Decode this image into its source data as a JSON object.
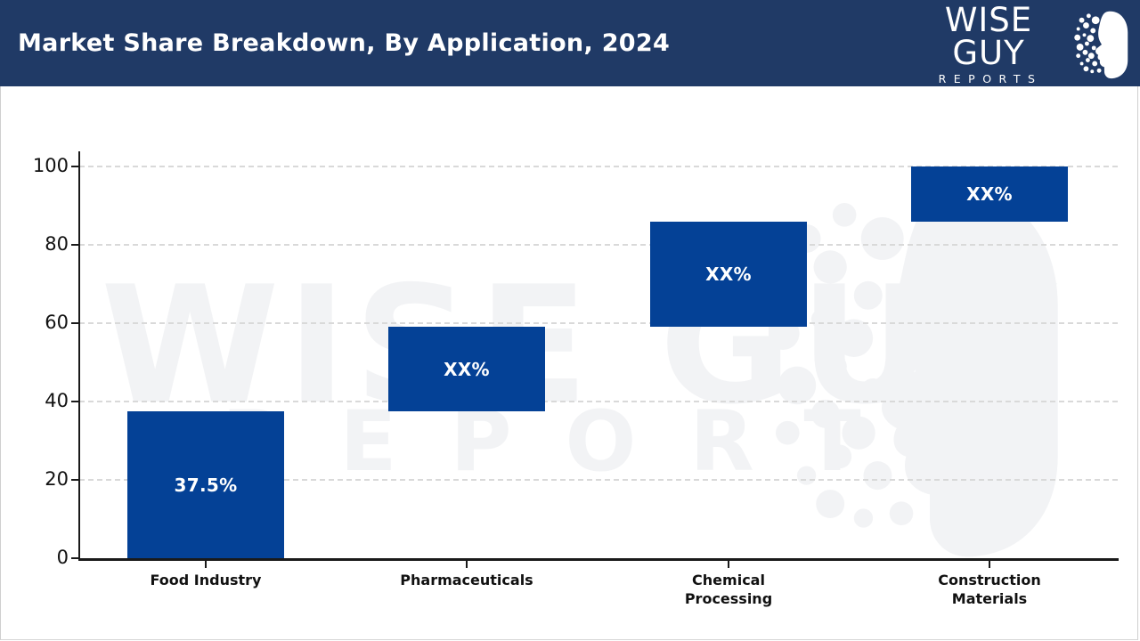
{
  "header": {
    "title": "Market Share Breakdown, By Application, 2024",
    "logo": {
      "line1": "WISE GUY",
      "line2": "REPORTS"
    }
  },
  "watermark": {
    "line1": "WISE GUY",
    "line2": "REPORTS"
  },
  "icons": {
    "logo_face": "dotted-head-profile-icon"
  },
  "colors": {
    "header_bg": "#203a66",
    "bar": "#044196",
    "bar_label": "#ffffff",
    "axis": "#1a1a1a",
    "grid": "#d9d9d9",
    "watermark": "#f2f3f5",
    "tick_text": "#111111"
  },
  "chart_data": {
    "type": "bar",
    "subtype": "waterfall",
    "title": "Market Share Breakdown, By Application, 2024",
    "xlabel": "",
    "ylabel": "",
    "ylim": [
      0,
      100
    ],
    "yticks": [
      0,
      20,
      40,
      60,
      80,
      100
    ],
    "grid": "horizontal-dashed",
    "legend": "none",
    "categories": [
      "Food Industry",
      "Pharmaceuticals",
      "Chemical\nProcessing",
      "Construction\nMaterials"
    ],
    "bars": [
      {
        "category": "Food Industry",
        "start": 0,
        "end": 37.5,
        "label": "37.5%"
      },
      {
        "category": "Pharmaceuticals",
        "start": 37.5,
        "end": 59,
        "label": "XX%"
      },
      {
        "category": "Chemical\nProcessing",
        "start": 59,
        "end": 86,
        "label": "XX%"
      },
      {
        "category": "Construction\nMaterials",
        "start": 86,
        "end": 100,
        "label": "XX%"
      }
    ]
  }
}
